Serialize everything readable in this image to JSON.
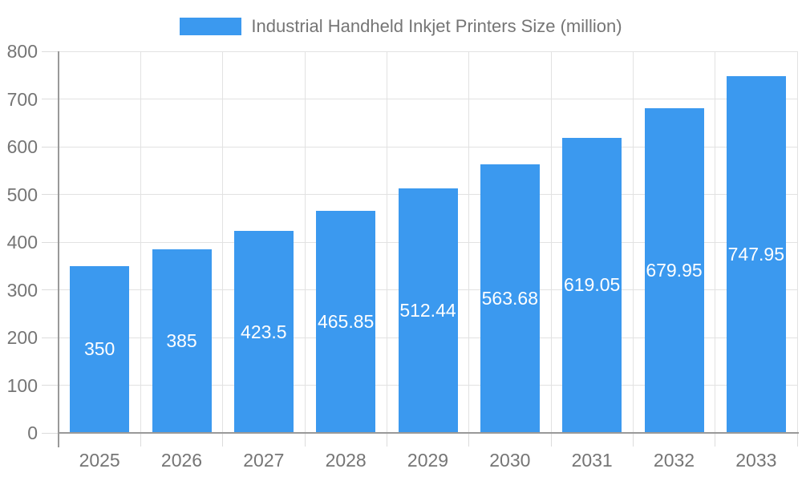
{
  "legend": {
    "label": "Industrial Handheld Inkjet Printers Size (million)"
  },
  "chart_data": {
    "type": "bar",
    "title": "Industrial Handheld Inkjet Printers Size (million)",
    "categories": [
      "2025",
      "2026",
      "2027",
      "2028",
      "2029",
      "2030",
      "2031",
      "2032",
      "2033"
    ],
    "values": [
      350,
      385,
      423.5,
      465.85,
      512.44,
      563.68,
      619.05,
      679.95,
      747.95
    ],
    "bar_labels": [
      "350",
      "385",
      "423.5",
      "465.85",
      "512.44",
      "563.68",
      "619.05",
      "679.95",
      "747.95"
    ],
    "xlabel": "",
    "ylabel": "",
    "ylim": [
      0,
      800
    ],
    "yticks": [
      0,
      100,
      200,
      300,
      400,
      500,
      600,
      700,
      800
    ],
    "grid": true,
    "legend_position": "top-center",
    "bar_label_position": "inside-center",
    "colors": {
      "bar": "#3b99ef",
      "grid": "#e2e2e2",
      "tick": "#dcdcdc",
      "axis": "#999999",
      "axis_label": "#757575",
      "bar_label": "#ffffff",
      "background": "#ffffff"
    }
  }
}
